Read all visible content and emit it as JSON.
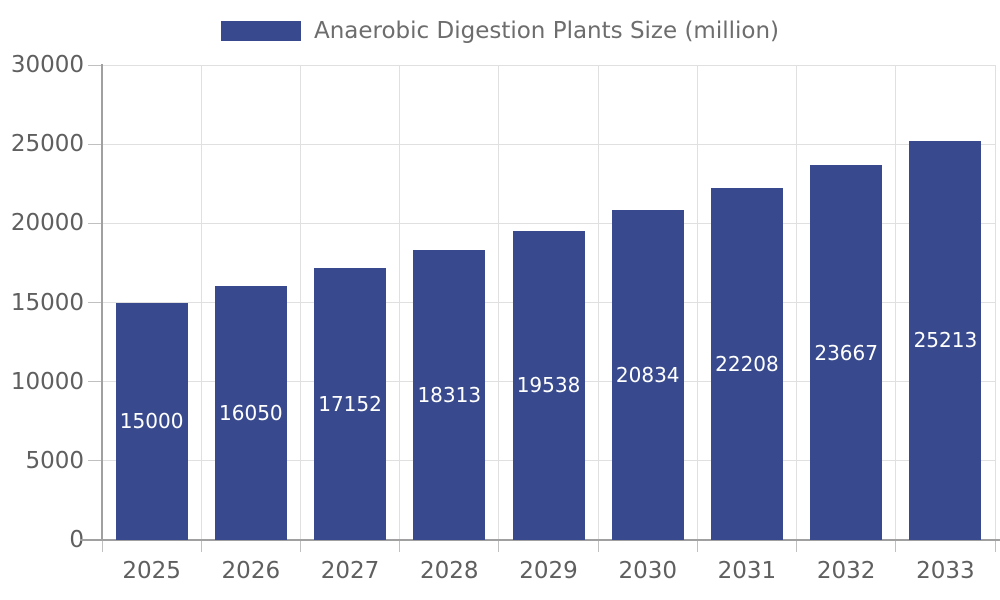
{
  "chart_data": {
    "type": "bar",
    "title": "Anaerobic Digestion Plants Size (million)",
    "categories": [
      "2025",
      "2026",
      "2027",
      "2028",
      "2029",
      "2030",
      "2031",
      "2032",
      "2033"
    ],
    "values": [
      15000,
      16050,
      17152,
      18313,
      19538,
      20834,
      22208,
      23667,
      25213
    ],
    "xlabel": "",
    "ylabel": "",
    "ylim": [
      0,
      30000
    ],
    "ytick_step": 5000,
    "y_tick_labels": [
      "0",
      "5000",
      "10000",
      "15000",
      "20000",
      "25000",
      "30000"
    ],
    "grid": true,
    "legend_position": "top",
    "bar_color": "#384a8d",
    "value_label_color": "#ffffff",
    "axis_text_color": "#5f5f5f",
    "legend_text_color": "#6d6d6d",
    "gridline_color": "#e0e0e0",
    "axis_line_color": "#a0a0a0",
    "tick_color": "#c0c0c0",
    "background_color": "#ffffff"
  }
}
